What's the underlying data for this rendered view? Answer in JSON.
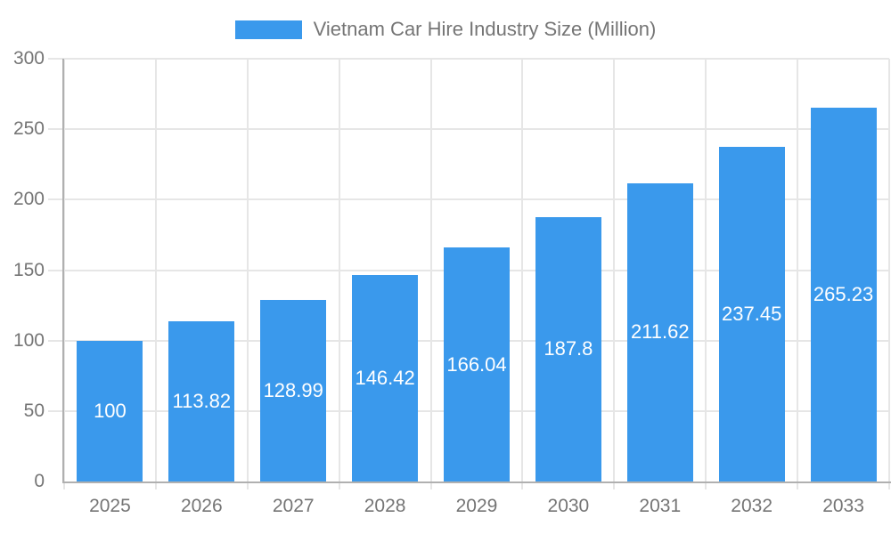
{
  "chart_data": {
    "type": "bar",
    "title": "Vietnam Car Hire Industry Size (Million)",
    "categories": [
      "2025",
      "2026",
      "2027",
      "2028",
      "2029",
      "2030",
      "2031",
      "2032",
      "2033"
    ],
    "series": [
      {
        "name": "Vietnam Car Hire Industry Size (Million)",
        "values": [
          100,
          113.82,
          128.99,
          146.42,
          166.04,
          187.8,
          211.62,
          237.45,
          265.23
        ]
      }
    ],
    "value_labels": [
      "100",
      "113.82",
      "128.99",
      "146.42",
      "166.04",
      "187.8",
      "211.62",
      "237.45",
      "265.23"
    ],
    "xlabel": "",
    "ylabel": "",
    "ylim": [
      0,
      300
    ],
    "yticks": [
      0,
      50,
      100,
      150,
      200,
      250,
      300
    ],
    "ytick_labels": [
      "0",
      "50",
      "100",
      "150",
      "200",
      "250",
      "300"
    ],
    "grid": true,
    "legend_position": "top",
    "value_label_position": "inside-center",
    "colors": {
      "bar": "#3A99EC",
      "text": "#757575",
      "grid": "#E6E6E6",
      "axis": "#B0B0B0",
      "bar_value_text": "#FFFFFF"
    }
  },
  "legend": {
    "label": "Vietnam Car Hire Industry Size (Million)"
  }
}
